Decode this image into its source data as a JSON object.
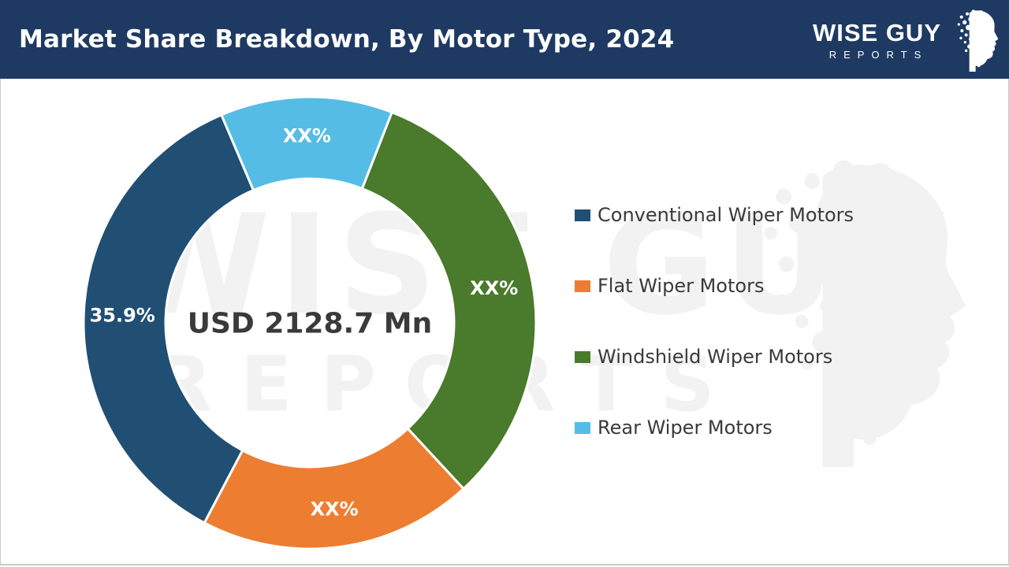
{
  "header": {
    "title": "Market Share Breakdown, By Motor Type, 2024",
    "logo_line1": "WISE GUY",
    "logo_line2": "REPORTS"
  },
  "watermark": {
    "line1": "WISE GUY",
    "line2": "REPORTS"
  },
  "chart_data": {
    "type": "donut",
    "title": "Market Share Breakdown, By Motor Type, 2024",
    "center_label": "USD 2128.7 Mn",
    "start_angle_deg": 113,
    "direction": "counterclockwise",
    "donut_hole_ratio": 0.64,
    "legend_position": "right",
    "segments": [
      {
        "name": "Conventional Wiper Motors",
        "label": "35.9%",
        "value_pct": 35.9,
        "color": "#214F74"
      },
      {
        "name": "Flat Wiper Motors",
        "label": "XX%",
        "value_pct": 19.6,
        "color": "#ED7D31"
      },
      {
        "name": "Windshield Wiper Motors",
        "label": "XX%",
        "value_pct": 32.2,
        "color": "#4A7A2B"
      },
      {
        "name": "Rear Wiper Motors",
        "label": "XX%",
        "value_pct": 12.3,
        "color": "#55BCE5"
      }
    ]
  },
  "colors": {
    "header_bg": "#1E3A63",
    "text_dark": "#3A3A3A",
    "watermark": "#F2F2F2",
    "border": "#C9C9C9"
  }
}
